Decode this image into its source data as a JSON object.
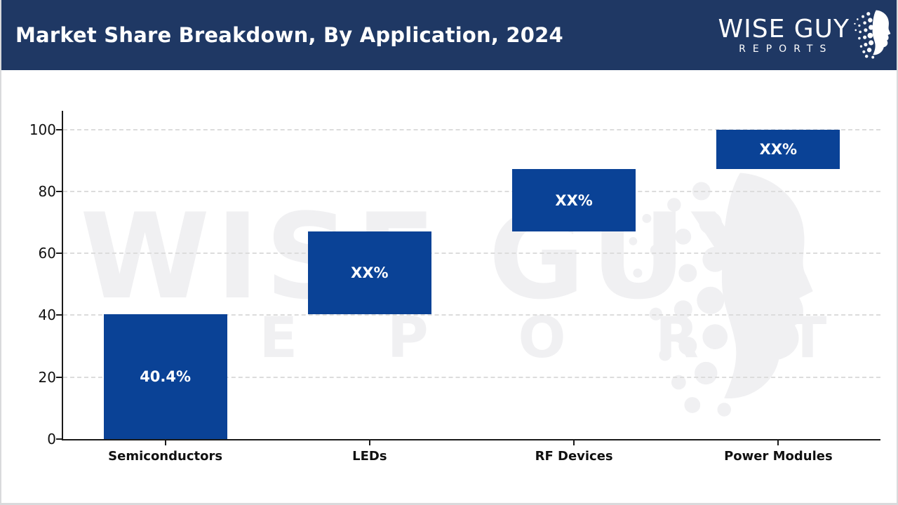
{
  "header": {
    "title": "Market Share Breakdown, By Application, 2024",
    "logo": {
      "name": "WISE GUY",
      "sub": "REPORTS"
    }
  },
  "watermark": {
    "line1": "WISE GUY",
    "line2": "R E P O R T S"
  },
  "colors": {
    "header_bg": "#1f3864",
    "bar": "#0a4296",
    "grid": "#dcdcdc",
    "axis": "#1a1a1a",
    "bar_label": "#ffffff",
    "watermark": "#f0f0f2"
  },
  "chart_data": {
    "type": "bar",
    "variant": "waterfall",
    "title": "Market Share Breakdown, By Application, 2024",
    "categories": [
      "Semiconductors",
      "LEDs",
      "RF Devices",
      "Power Modules"
    ],
    "segments": [
      {
        "category": "Semiconductors",
        "start": 0,
        "end": 40.4,
        "label": "40.4%"
      },
      {
        "category": "LEDs",
        "start": 40.4,
        "end": 67.0,
        "label": "XX%"
      },
      {
        "category": "RF Devices",
        "start": 67.0,
        "end": 87.2,
        "label": "XX%"
      },
      {
        "category": "Power Modules",
        "start": 87.2,
        "end": 100,
        "label": "XX%"
      }
    ],
    "xlabel": "",
    "ylabel": "",
    "ylim": [
      0,
      100
    ],
    "yticks": [
      0,
      20,
      40,
      60,
      80,
      100
    ],
    "grid": "horizontal-dashed",
    "legend": "none",
    "bar_color": "#0a4296",
    "value_labels_masked": true
  }
}
